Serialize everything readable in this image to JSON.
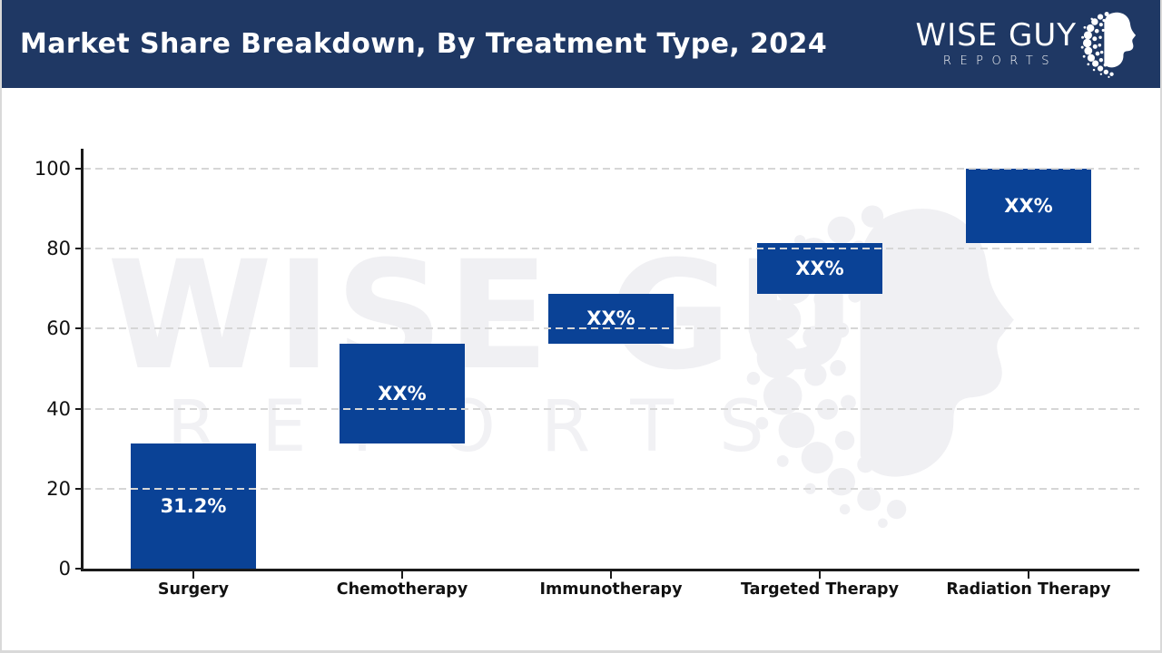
{
  "header": {
    "title": "Market Share Breakdown, By Treatment Type, 2024",
    "logo": {
      "wordmark": "WISE GUY",
      "subtext": "REPORTS"
    }
  },
  "watermark": {
    "wordmark": "WISE GUY",
    "subtext": "REPORTS"
  },
  "colors": {
    "header_bg": "#1f3864",
    "bar": "#0a4296",
    "bar_label": "#ffffff",
    "grid": "#d6d6d6",
    "axis": "#1a1a1a",
    "tick_label": "#111111",
    "watermark": "#f0f0f3",
    "page_border": "#d9d9d9"
  },
  "chart_data": {
    "type": "bar",
    "subtype": "waterfall",
    "title": "Market Share Breakdown, By Treatment Type, 2024",
    "xlabel": "",
    "ylabel": "",
    "ylim": [
      0,
      100
    ],
    "yticks": [
      0,
      20,
      40,
      60,
      80,
      100
    ],
    "grid": "horizontal dashed, drawn over bars",
    "legend": "none",
    "categories": [
      "Surgery",
      "Chemotherapy",
      "Immunotherapy",
      "Targeted Therapy",
      "Radiation Therapy"
    ],
    "segments": [
      {
        "category": "Surgery",
        "start": 0,
        "end": 31.2,
        "value": 31.2,
        "label": "31.2%"
      },
      {
        "category": "Chemotherapy",
        "start": 31.2,
        "end": 56.2,
        "value": 25.0,
        "label": "XX%"
      },
      {
        "category": "Immunotherapy",
        "start": 56.2,
        "end": 68.8,
        "value": 12.6,
        "label": "XX%"
      },
      {
        "category": "Targeted Therapy",
        "start": 68.8,
        "end": 81.3,
        "value": 12.5,
        "label": "XX%"
      },
      {
        "category": "Radiation Therapy",
        "start": 81.3,
        "end": 100,
        "value": 18.7,
        "label": "XX%"
      }
    ]
  }
}
